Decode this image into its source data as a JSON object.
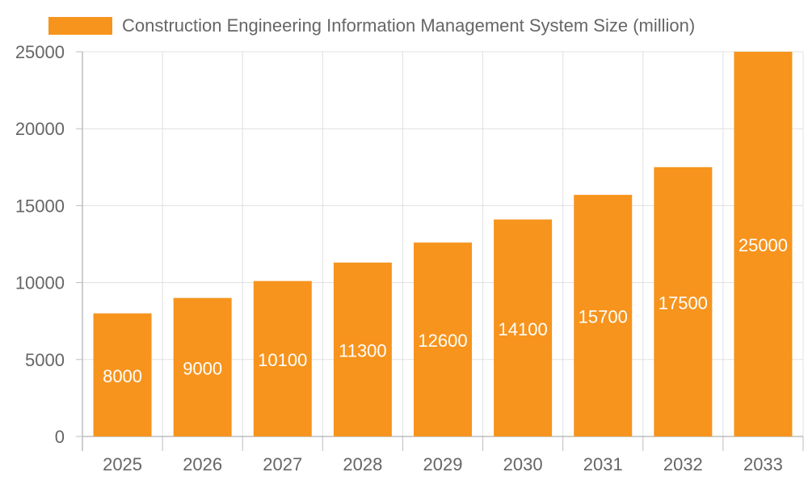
{
  "chart_data": {
    "type": "bar",
    "categories": [
      "2025",
      "2026",
      "2027",
      "2028",
      "2029",
      "2030",
      "2031",
      "2032",
      "2033"
    ],
    "series": [
      {
        "name": "Construction Engineering Information Management System Size (million)",
        "values": [
          8000,
          9000,
          10100,
          11300,
          12600,
          14100,
          15700,
          17500,
          25000
        ]
      }
    ],
    "ylim": [
      0,
      25000
    ],
    "yticks": [
      0,
      5000,
      10000,
      15000,
      20000,
      25000
    ],
    "grid": true,
    "legend": "top-center",
    "bar_color": "#F7941D",
    "data_labels": true
  }
}
